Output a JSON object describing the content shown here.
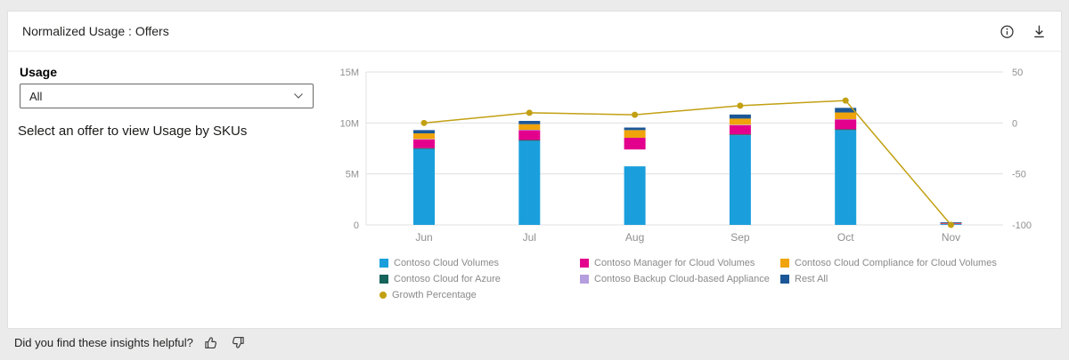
{
  "header": {
    "title": "Normalized Usage : Offers"
  },
  "filters": {
    "usage_label": "Usage",
    "usage_dropdown_value": "All",
    "hint": "Select an offer to view Usage by SKUs"
  },
  "chart_data": {
    "type": "bar",
    "subtype": "stacked-bars-with-growth-line",
    "unit": "millions",
    "categories": [
      "Jun",
      "Jul",
      "Aug",
      "Sep",
      "Oct",
      "Nov"
    ],
    "left_axis": {
      "min": 0,
      "max": 15,
      "ticks": [
        {
          "value": 15,
          "label": "15M"
        },
        {
          "value": 10,
          "label": "10M"
        },
        {
          "value": 5,
          "label": "5M"
        },
        {
          "value": 0,
          "label": "0"
        }
      ]
    },
    "right_axis": {
      "min": -100,
      "max": 50,
      "ticks": [
        {
          "value": 50,
          "label": "50"
        },
        {
          "value": 0,
          "label": "0"
        },
        {
          "value": -50,
          "label": "-50"
        },
        {
          "value": -100,
          "label": "-100"
        }
      ]
    },
    "series": [
      {
        "name": "Contoso Cloud Volumes",
        "color": "#1a9fdc",
        "values": [
          7.45,
          8.25,
          5.75,
          8.8,
          9.3,
          0.08
        ]
      },
      {
        "name": "gap",
        "color": "#ffffff",
        "in_legend": false,
        "values": [
          0,
          0,
          1.65,
          0,
          0,
          0
        ]
      },
      {
        "name": "Contoso Cloud for Azure",
        "color": "#15635a",
        "values": [
          0.08,
          0.08,
          0,
          0.08,
          0.08,
          0
        ]
      },
      {
        "name": "Contoso Manager for Cloud Volumes",
        "color": "#e3008c",
        "values": [
          0.85,
          0.95,
          1.15,
          0.9,
          0.95,
          0.05
        ]
      },
      {
        "name": "Contoso Backup Cloud-based Appliance",
        "color": "#b49ede",
        "values": [
          0.05,
          0.05,
          0,
          0.05,
          0.05,
          0
        ]
      },
      {
        "name": "Contoso Cloud Compliance for Cloud Volumes",
        "color": "#f0a30a",
        "values": [
          0.55,
          0.55,
          0.75,
          0.6,
          0.65,
          0.04
        ]
      },
      {
        "name": "Rest All",
        "color": "#1b5796",
        "values": [
          0.32,
          0.32,
          0.25,
          0.4,
          0.45,
          0.08
        ]
      }
    ],
    "line_series": {
      "name": "Growth Percentage",
      "color": "#c2a012",
      "values": [
        0,
        10,
        8,
        17,
        22,
        -100
      ]
    },
    "legend": [
      {
        "name": "Contoso Cloud Volumes",
        "color": "#1a9fdc",
        "shape": "square"
      },
      {
        "name": "Contoso Manager for Cloud Volumes",
        "color": "#e3008c",
        "shape": "square"
      },
      {
        "name": "Contoso Cloud Compliance for Cloud Volumes",
        "color": "#f0a30a",
        "shape": "square"
      },
      {
        "name": "Contoso Cloud for Azure",
        "color": "#15635a",
        "shape": "square"
      },
      {
        "name": "Contoso Backup Cloud-based Appliance",
        "color": "#b49ede",
        "shape": "square"
      },
      {
        "name": "Rest All",
        "color": "#1b5796",
        "shape": "square"
      },
      {
        "name": "Growth Percentage",
        "color": "#c2a012",
        "shape": "circle"
      }
    ]
  },
  "footer": {
    "feedback_prompt": "Did you find these insights helpful?"
  }
}
